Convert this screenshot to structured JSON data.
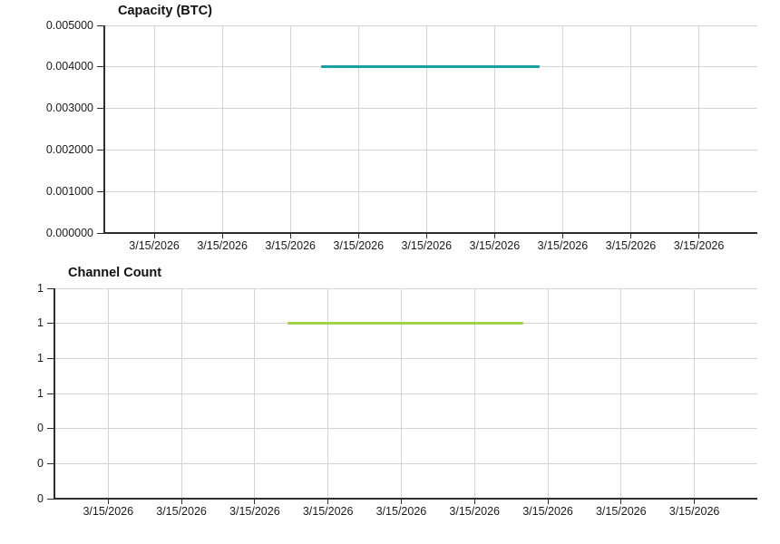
{
  "page": {
    "background": "#ffffff"
  },
  "chart_data": [
    {
      "id": "capacity-btc",
      "type": "line",
      "title": "Capacity (BTC)",
      "xlabel": "",
      "ylabel": "",
      "ylim": [
        0,
        0.005
      ],
      "grid": true,
      "legend": false,
      "y_tick_labels": [
        "0.005000",
        "0.004000",
        "0.003000",
        "0.002000",
        "0.001000",
        "0.000000"
      ],
      "x_tick_labels": [
        "3/15/2026",
        "3/15/2026",
        "3/15/2026",
        "3/15/2026",
        "3/15/2026",
        "3/15/2026",
        "3/15/2026",
        "3/15/2026",
        "3/15/2026"
      ],
      "series": [
        {
          "name": "Capacity (BTC)",
          "color": "#1a9fa2",
          "constant_value": 0.004,
          "x_date": "3/15/2026",
          "x_span_fraction": [
            0.332,
            0.667
          ]
        }
      ]
    },
    {
      "id": "channel-count",
      "type": "line",
      "title": "Channel Count",
      "xlabel": "",
      "ylabel": "",
      "ylim": [
        0,
        1.2
      ],
      "grid": true,
      "legend": false,
      "y_tick_labels": [
        "1",
        "1",
        "1",
        "1",
        "0",
        "0",
        "0"
      ],
      "x_tick_labels": [
        "3/15/2026",
        "3/15/2026",
        "3/15/2026",
        "3/15/2026",
        "3/15/2026",
        "3/15/2026",
        "3/15/2026",
        "3/15/2026",
        "3/15/2026"
      ],
      "series": [
        {
          "name": "Channel Count",
          "color": "#a2d249",
          "constant_value": 1,
          "x_date": "3/15/2026",
          "x_span_fraction": [
            0.332,
            0.667
          ]
        }
      ]
    }
  ]
}
